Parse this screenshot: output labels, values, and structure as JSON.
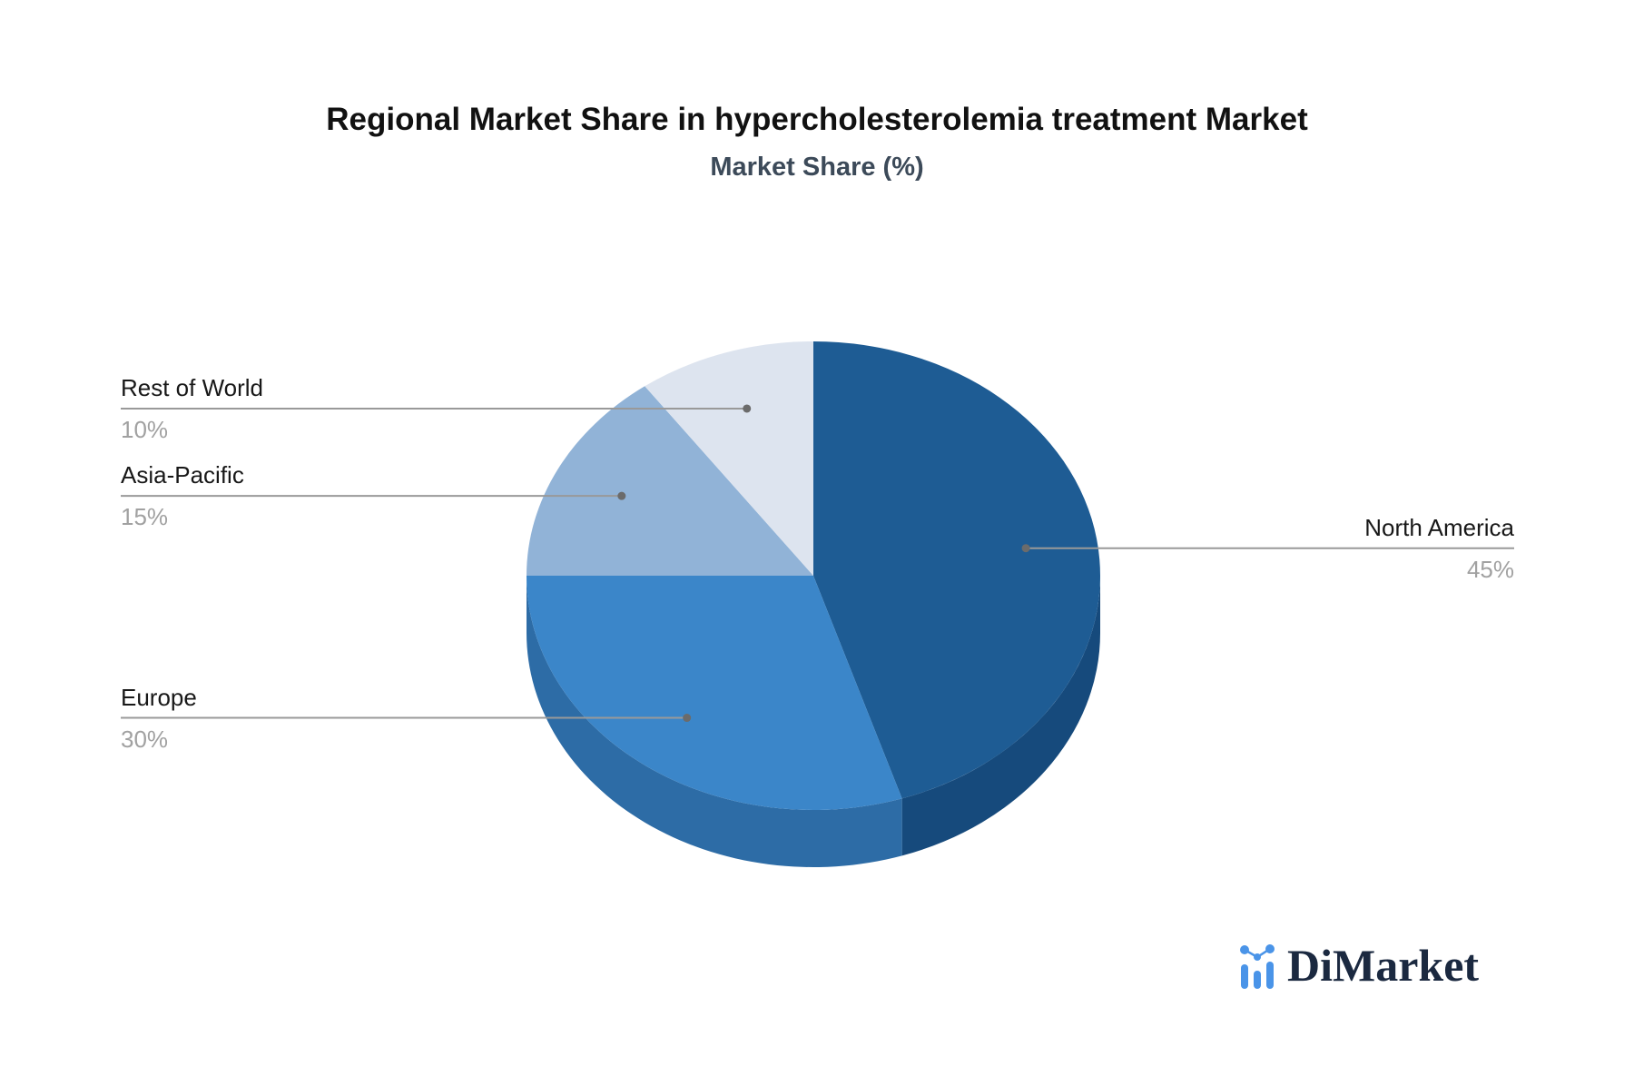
{
  "chart_data": {
    "type": "pie",
    "style_3d": true,
    "title": "Regional Market Share in hypercholesterolemia treatment Market",
    "subtitle": "Market Share (%)",
    "unit": "%",
    "total": 100,
    "direction": "clockwise",
    "start_angle": "12-oclock",
    "legend_position": "callout-labels",
    "slices": [
      {
        "label": "North America",
        "value": 45,
        "display": "45%",
        "color": "#1e5c94",
        "side_color": "#164a7c",
        "callout_side": "right"
      },
      {
        "label": "Europe",
        "value": 30,
        "display": "30%",
        "color": "#3b86c9",
        "side_color": "#2d6ca6",
        "callout_side": "left"
      },
      {
        "label": "Asia-Pacific",
        "value": 15,
        "display": "15%",
        "color": "#91b3d7",
        "side_color": "#7496bd",
        "callout_side": "left"
      },
      {
        "label": "Rest of World",
        "value": 10,
        "display": "10%",
        "color": "#dde4ef",
        "side_color": "#b9c4d6",
        "callout_side": "left"
      }
    ],
    "callout_line_color": "#999999",
    "callout_dot_color": "#6b6b6b",
    "label_color": "#181818",
    "value_color": "#a1a1a1",
    "title_color": "#111111",
    "subtitle_color": "#3c4a59",
    "background": "#ffffff"
  },
  "logo": {
    "text": "DiMarket",
    "icon": "bar-line-chart-icon",
    "text_color": "#1b2940",
    "icon_color": "#4a94e8"
  }
}
